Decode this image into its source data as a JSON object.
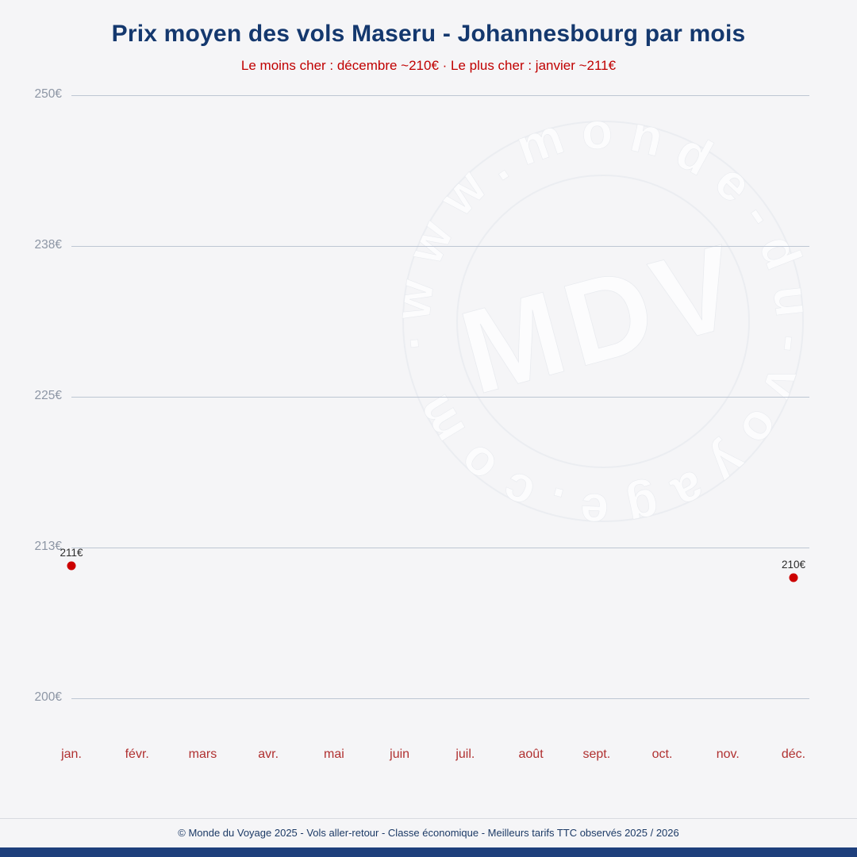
{
  "chart_data": {
    "type": "scatter",
    "title": "Prix moyen des vols Maseru - Johannesbourg par mois",
    "subtitle": "Le moins cher : décembre ~210€ · Le plus cher : janvier ~211€",
    "categories": [
      "jan.",
      "févr.",
      "mars",
      "avr.",
      "mai",
      "juin",
      "juil.",
      "août",
      "sept.",
      "oct.",
      "nov.",
      "déc."
    ],
    "values": [
      211,
      null,
      null,
      null,
      null,
      null,
      null,
      null,
      null,
      null,
      null,
      210
    ],
    "point_labels": [
      "211€",
      "",
      "",
      "",
      "",
      "",
      "",
      "",
      "",
      "",
      "",
      "210€"
    ],
    "y_tick_labels": [
      "250€",
      "238€",
      "225€",
      "213€",
      "200€"
    ],
    "y_tick_values": [
      250,
      238,
      225,
      213,
      200
    ],
    "ylim": [
      200,
      250
    ],
    "xlabel": "",
    "ylabel": "",
    "grid": true,
    "legend": false,
    "point_color": "#cc0000"
  },
  "watermark": {
    "circle_text": "www.monde-du-voyage.com ·",
    "center_text": "MDV"
  },
  "footer": {
    "text": "© Monde du Voyage 2025 - Vols aller-retour - Classe économique - Meilleurs tarifs TTC observés 2025 / 2026"
  },
  "colors": {
    "title": "#14386e",
    "accent_red": "#c00000",
    "grid": "#bdc6d3",
    "y_tick": "#8d96a5",
    "background": "#f5f5f7",
    "footer_bar": "#1e3f7c"
  }
}
